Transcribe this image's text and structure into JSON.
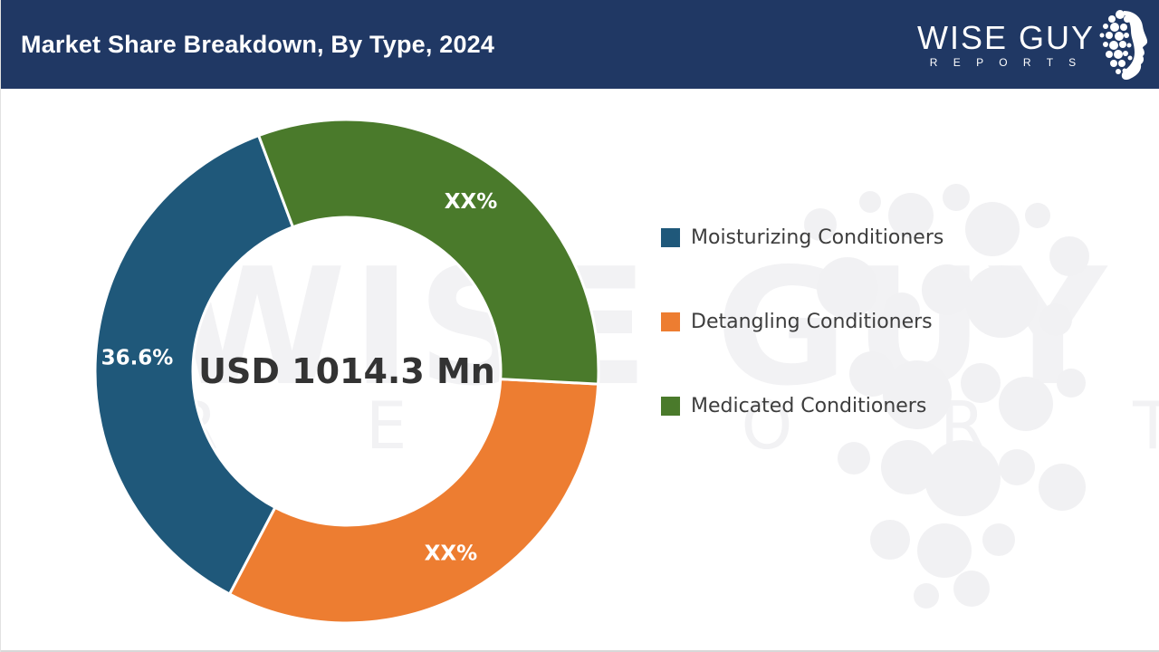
{
  "header": {
    "brand": {
      "line1": "WISE GUY",
      "line2": "R E P O R T S"
    }
  },
  "watermark": {
    "line1": "WISE GUY",
    "line2": "R E P O R T S"
  },
  "chart_data": {
    "type": "pie",
    "subtype": "donut",
    "title": "Market Share Breakdown, By Type, 2024",
    "center_label": "USD 1014.3 Mn",
    "start_angle_deg": 110.5,
    "direction": "ccw",
    "legend_position": "right",
    "grid": false,
    "segments": [
      {
        "label": "Moisturizing Conditioners",
        "display_value": "36.6%",
        "value_pct": 36.6,
        "color": "#1f587a"
      },
      {
        "label": "Detangling Conditioners",
        "display_value": "XX%",
        "value_pct": 31.9,
        "color": "#ed7d31"
      },
      {
        "label": "Medicated Conditioners",
        "display_value": "XX%",
        "value_pct": 31.5,
        "color": "#4a7a2b"
      }
    ]
  },
  "colors": {
    "header_bg": "#203864",
    "center_text": "#333333",
    "legend_text": "#3d3d3d",
    "watermark": "#f2f2f4",
    "separator": "#ffffff"
  }
}
